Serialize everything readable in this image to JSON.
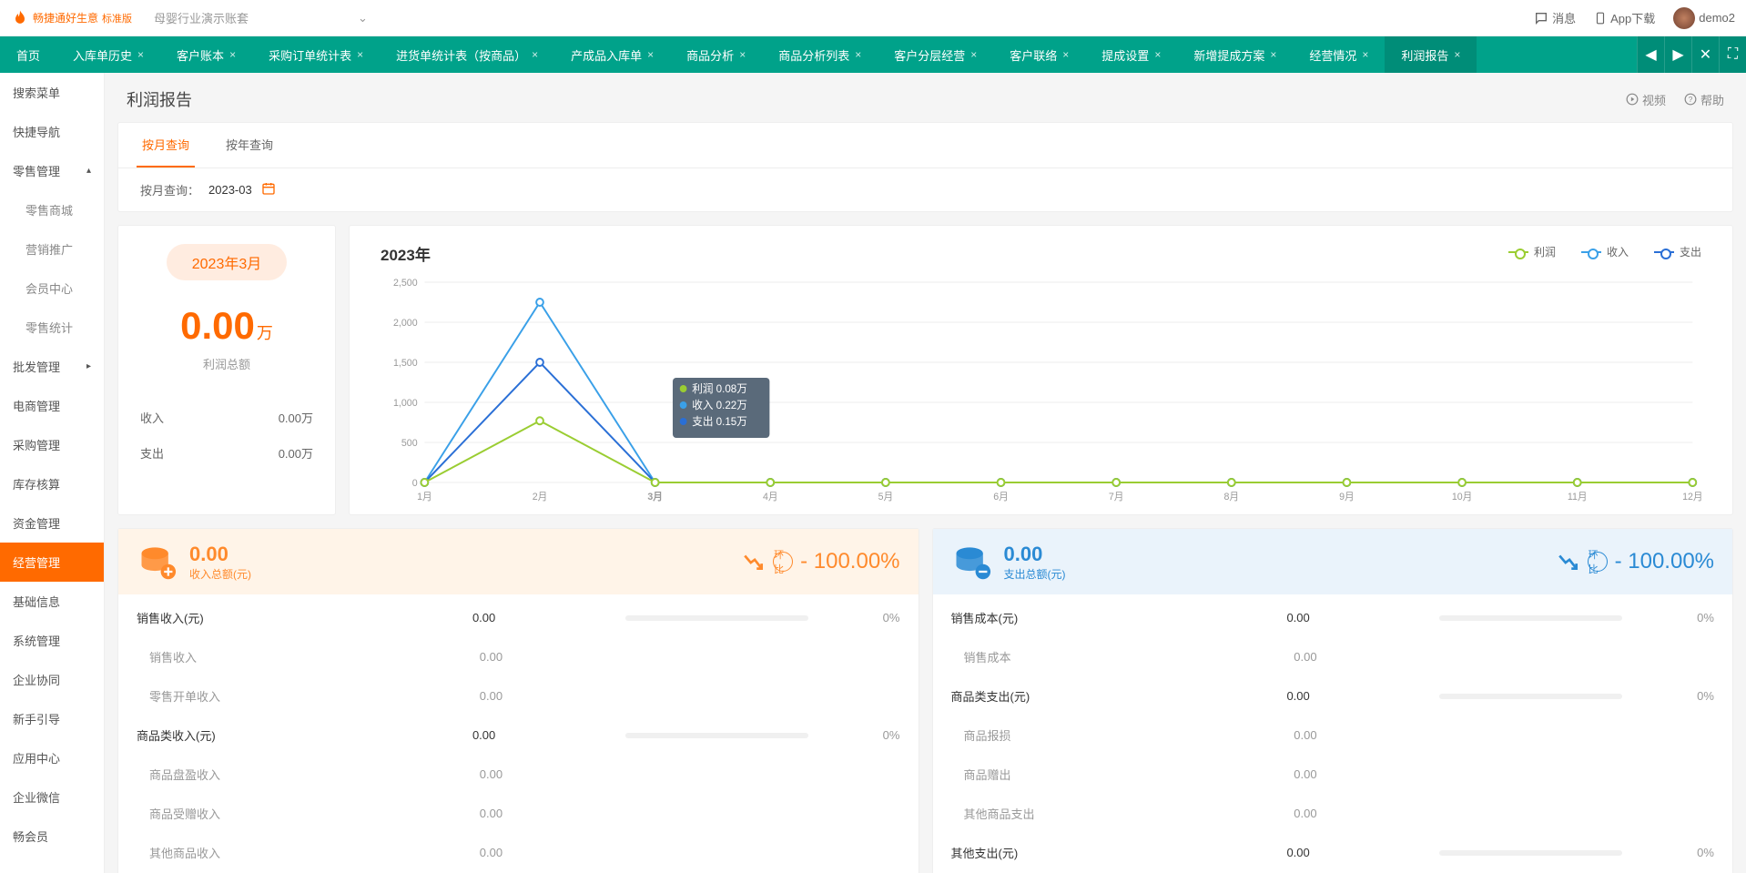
{
  "header": {
    "brand": "畅捷通好生意",
    "edition": "标准版",
    "account_name": "母婴行业演示账套",
    "msg": "消息",
    "app": "App下载",
    "user": "demo2"
  },
  "tabs": [
    {
      "label": "首页",
      "closable": false
    },
    {
      "label": "入库单历史",
      "closable": true
    },
    {
      "label": "客户账本",
      "closable": true
    },
    {
      "label": "采购订单统计表",
      "closable": true
    },
    {
      "label": "进货单统计表（按商品）",
      "closable": true
    },
    {
      "label": "产成品入库单",
      "closable": true
    },
    {
      "label": "商品分析",
      "closable": true
    },
    {
      "label": "商品分析列表",
      "closable": true
    },
    {
      "label": "客户分层经营",
      "closable": true
    },
    {
      "label": "客户联络",
      "closable": true
    },
    {
      "label": "提成设置",
      "closable": true
    },
    {
      "label": "新增提成方案",
      "closable": true
    },
    {
      "label": "经营情况",
      "closable": true
    },
    {
      "label": "利润报告",
      "closable": true,
      "active": true
    }
  ],
  "sidebar": [
    {
      "label": "搜索菜单"
    },
    {
      "label": "快捷导航"
    },
    {
      "label": "零售管理",
      "expand": true
    },
    {
      "label": "零售商城",
      "sub": true
    },
    {
      "label": "营销推广",
      "sub": true
    },
    {
      "label": "会员中心",
      "sub": true
    },
    {
      "label": "零售统计",
      "sub": true
    },
    {
      "label": "批发管理",
      "caret": true
    },
    {
      "label": "电商管理"
    },
    {
      "label": "采购管理"
    },
    {
      "label": "库存核算"
    },
    {
      "label": "资金管理"
    },
    {
      "label": "经营管理",
      "active": true
    },
    {
      "label": "基础信息"
    },
    {
      "label": "系统管理"
    },
    {
      "label": "企业协同"
    },
    {
      "label": "新手引导"
    },
    {
      "label": "应用中心"
    },
    {
      "label": "企业微信"
    },
    {
      "label": "畅会员"
    }
  ],
  "page": {
    "title": "利润报告",
    "video": "视频",
    "help": "帮助",
    "view_tabs": [
      "按月查询",
      "按年查询"
    ],
    "filter_label": "按月查询：",
    "filter_value": "2023-03"
  },
  "summary": {
    "month_badge": "2023年3月",
    "big_value": "0.00",
    "big_unit": "万",
    "big_label": "利润总额",
    "rows": [
      {
        "name": "收入",
        "value": "0.00万"
      },
      {
        "name": "支出",
        "value": "0.00万"
      }
    ]
  },
  "chart": {
    "title": "2023年",
    "colors": {
      "profit": "#9acd32",
      "income": "#3aa0e8",
      "expense": "#2a6fd6"
    },
    "legend": [
      {
        "name": "利润",
        "color": "#9acd32"
      },
      {
        "name": "收入",
        "color": "#3aa0e8"
      },
      {
        "name": "支出",
        "color": "#2a6fd6"
      }
    ],
    "y_ticks": [
      0,
      500,
      1000,
      1500,
      2000,
      2500
    ],
    "x_labels": [
      "1月",
      "2月",
      "3月",
      "4月",
      "5月",
      "6月",
      "7月",
      "8月",
      "9月",
      "10月",
      "11月",
      "12月"
    ],
    "highlight_x": 2,
    "series": {
      "income": [
        0,
        2250,
        0,
        0,
        0,
        0,
        0,
        0,
        0,
        0,
        0,
        0
      ],
      "expense": [
        0,
        1500,
        0,
        0,
        0,
        0,
        0,
        0,
        0,
        0,
        0,
        0
      ],
      "profit": [
        0,
        770,
        0,
        0,
        0,
        0,
        0,
        0,
        0,
        0,
        0,
        0
      ]
    },
    "tooltip": {
      "x": 2,
      "lines": [
        {
          "color": "#9acd32",
          "text": "利润 0.08万"
        },
        {
          "color": "#3aa0e8",
          "text": "收入 0.22万"
        },
        {
          "color": "#2a6fd6",
          "text": "支出 0.15万"
        }
      ]
    }
  },
  "panels": [
    {
      "theme": "orange",
      "accentColor": "#ff8a2c",
      "total_value": "0.00",
      "total_label": "收入总额(元)",
      "compare_label": "环比",
      "pct": "- 100.00%",
      "rows": [
        {
          "name": "销售收入(元)",
          "value": "0.00",
          "pct": "0%",
          "head": true
        },
        {
          "name": "销售收入",
          "value": "0.00"
        },
        {
          "name": "零售开单收入",
          "value": "0.00"
        },
        {
          "name": "商品类收入(元)",
          "value": "0.00",
          "pct": "0%",
          "head": true
        },
        {
          "name": "商品盘盈收入",
          "value": "0.00"
        },
        {
          "name": "商品受赠收入",
          "value": "0.00"
        },
        {
          "name": "其他商品收入",
          "value": "0.00"
        }
      ]
    },
    {
      "theme": "blue",
      "accentColor": "#2a8ad4",
      "total_value": "0.00",
      "total_label": "支出总额(元)",
      "compare_label": "环比",
      "pct": "- 100.00%",
      "rows": [
        {
          "name": "销售成本(元)",
          "value": "0.00",
          "pct": "0%",
          "head": true
        },
        {
          "name": "销售成本",
          "value": "0.00"
        },
        {
          "name": "商品类支出(元)",
          "value": "0.00",
          "pct": "0%",
          "head": true
        },
        {
          "name": "商品报损",
          "value": "0.00"
        },
        {
          "name": "商品赠出",
          "value": "0.00"
        },
        {
          "name": "其他商品支出",
          "value": "0.00"
        },
        {
          "name": "其他支出(元)",
          "value": "0.00",
          "pct": "0%",
          "head": true
        }
      ]
    }
  ]
}
